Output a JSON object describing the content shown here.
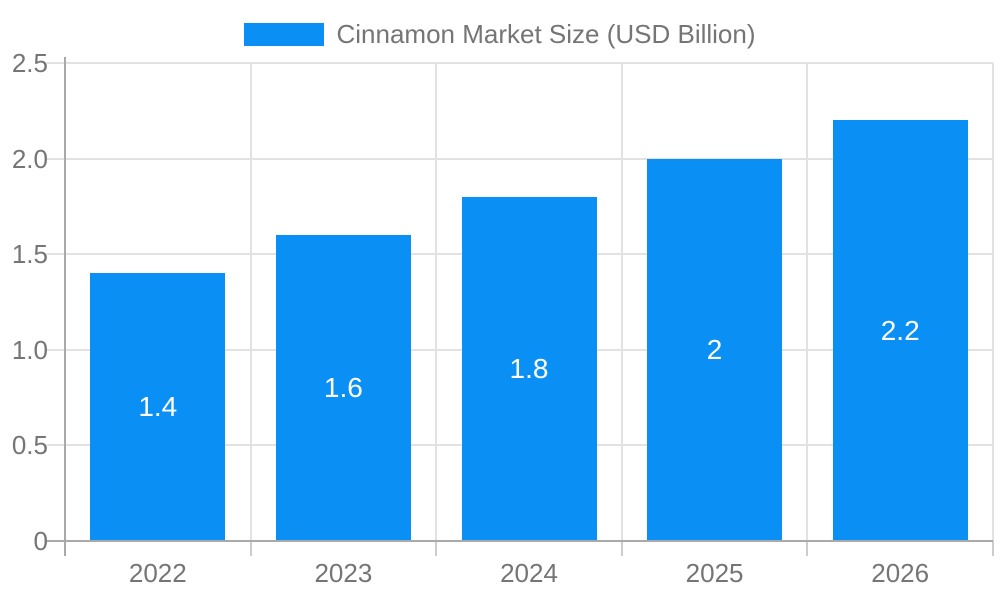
{
  "chart_data": {
    "type": "bar",
    "title": "Cinnamon Market Size (USD Billion)",
    "legend_position": "top",
    "categories": [
      "2022",
      "2023",
      "2024",
      "2025",
      "2026"
    ],
    "values": [
      1.4,
      1.6,
      1.8,
      2,
      2.2
    ],
    "bar_labels": [
      "1.4",
      "1.6",
      "1.8",
      "2",
      "2.2"
    ],
    "xlabel": "",
    "ylabel": "",
    "ylim": [
      0,
      2.5
    ],
    "ytick_labels": [
      "0",
      "0.5",
      "1.0",
      "1.5",
      "2.0",
      "2.5"
    ],
    "grid": true,
    "colors": {
      "bar": "#0a90f5",
      "grid_line": "#e2e2e2",
      "axis_line": "#a9a9a9",
      "tick_label": "#757575",
      "legend_label": "#757575",
      "data_label": "#ffffff",
      "background": "#ffffff"
    }
  }
}
